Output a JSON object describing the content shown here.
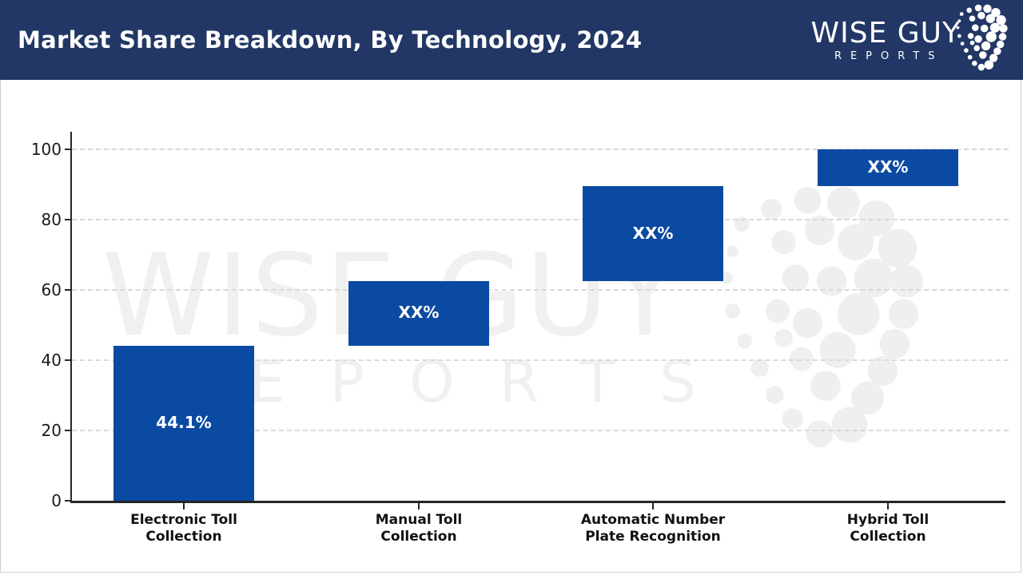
{
  "header": {
    "title": "Market Share Breakdown, By Technology, 2024",
    "logo": {
      "name": "WISE GUY",
      "tagline": "REPORTS"
    }
  },
  "watermark": {
    "line1": "WISE GUY",
    "line2": "REPORTS"
  },
  "chart_data": {
    "type": "bar",
    "subtype": "floating-waterfall",
    "title": "Market Share Breakdown, By Technology, 2024",
    "categories": [
      "Electronic Toll Collection",
      "Manual Toll Collection",
      "Automatic Number Plate Recognition",
      "Hybrid Toll Collection"
    ],
    "category_label_lines": [
      [
        "Electronic Toll",
        "Collection"
      ],
      [
        "Manual Toll",
        "Collection"
      ],
      [
        "Automatic Number",
        "Plate Recognition"
      ],
      [
        "Hybrid Toll",
        "Collection"
      ]
    ],
    "bars": [
      {
        "start": 0,
        "end": 44.1,
        "label": "44.1%"
      },
      {
        "start": 44.1,
        "end": 62.5,
        "label": "XX%"
      },
      {
        "start": 62.5,
        "end": 89.5,
        "label": "XX%"
      },
      {
        "start": 89.5,
        "end": 100,
        "label": "XX%"
      }
    ],
    "values": [
      44.1,
      18.4,
      27.0,
      10.5
    ],
    "yticks": [
      0,
      20,
      40,
      60,
      80,
      100
    ],
    "ylim": [
      0,
      105
    ],
    "xlabel": "",
    "ylabel": "",
    "grid": "horizontal-dashed",
    "legend": "none",
    "bar_color": "#0b4aa2",
    "bar_label_color": "#ffffff",
    "axis_color": "#262626",
    "grid_color": "#d9d9d9",
    "header_bg": "#223765",
    "watermark_color": "#f0f0f0"
  }
}
